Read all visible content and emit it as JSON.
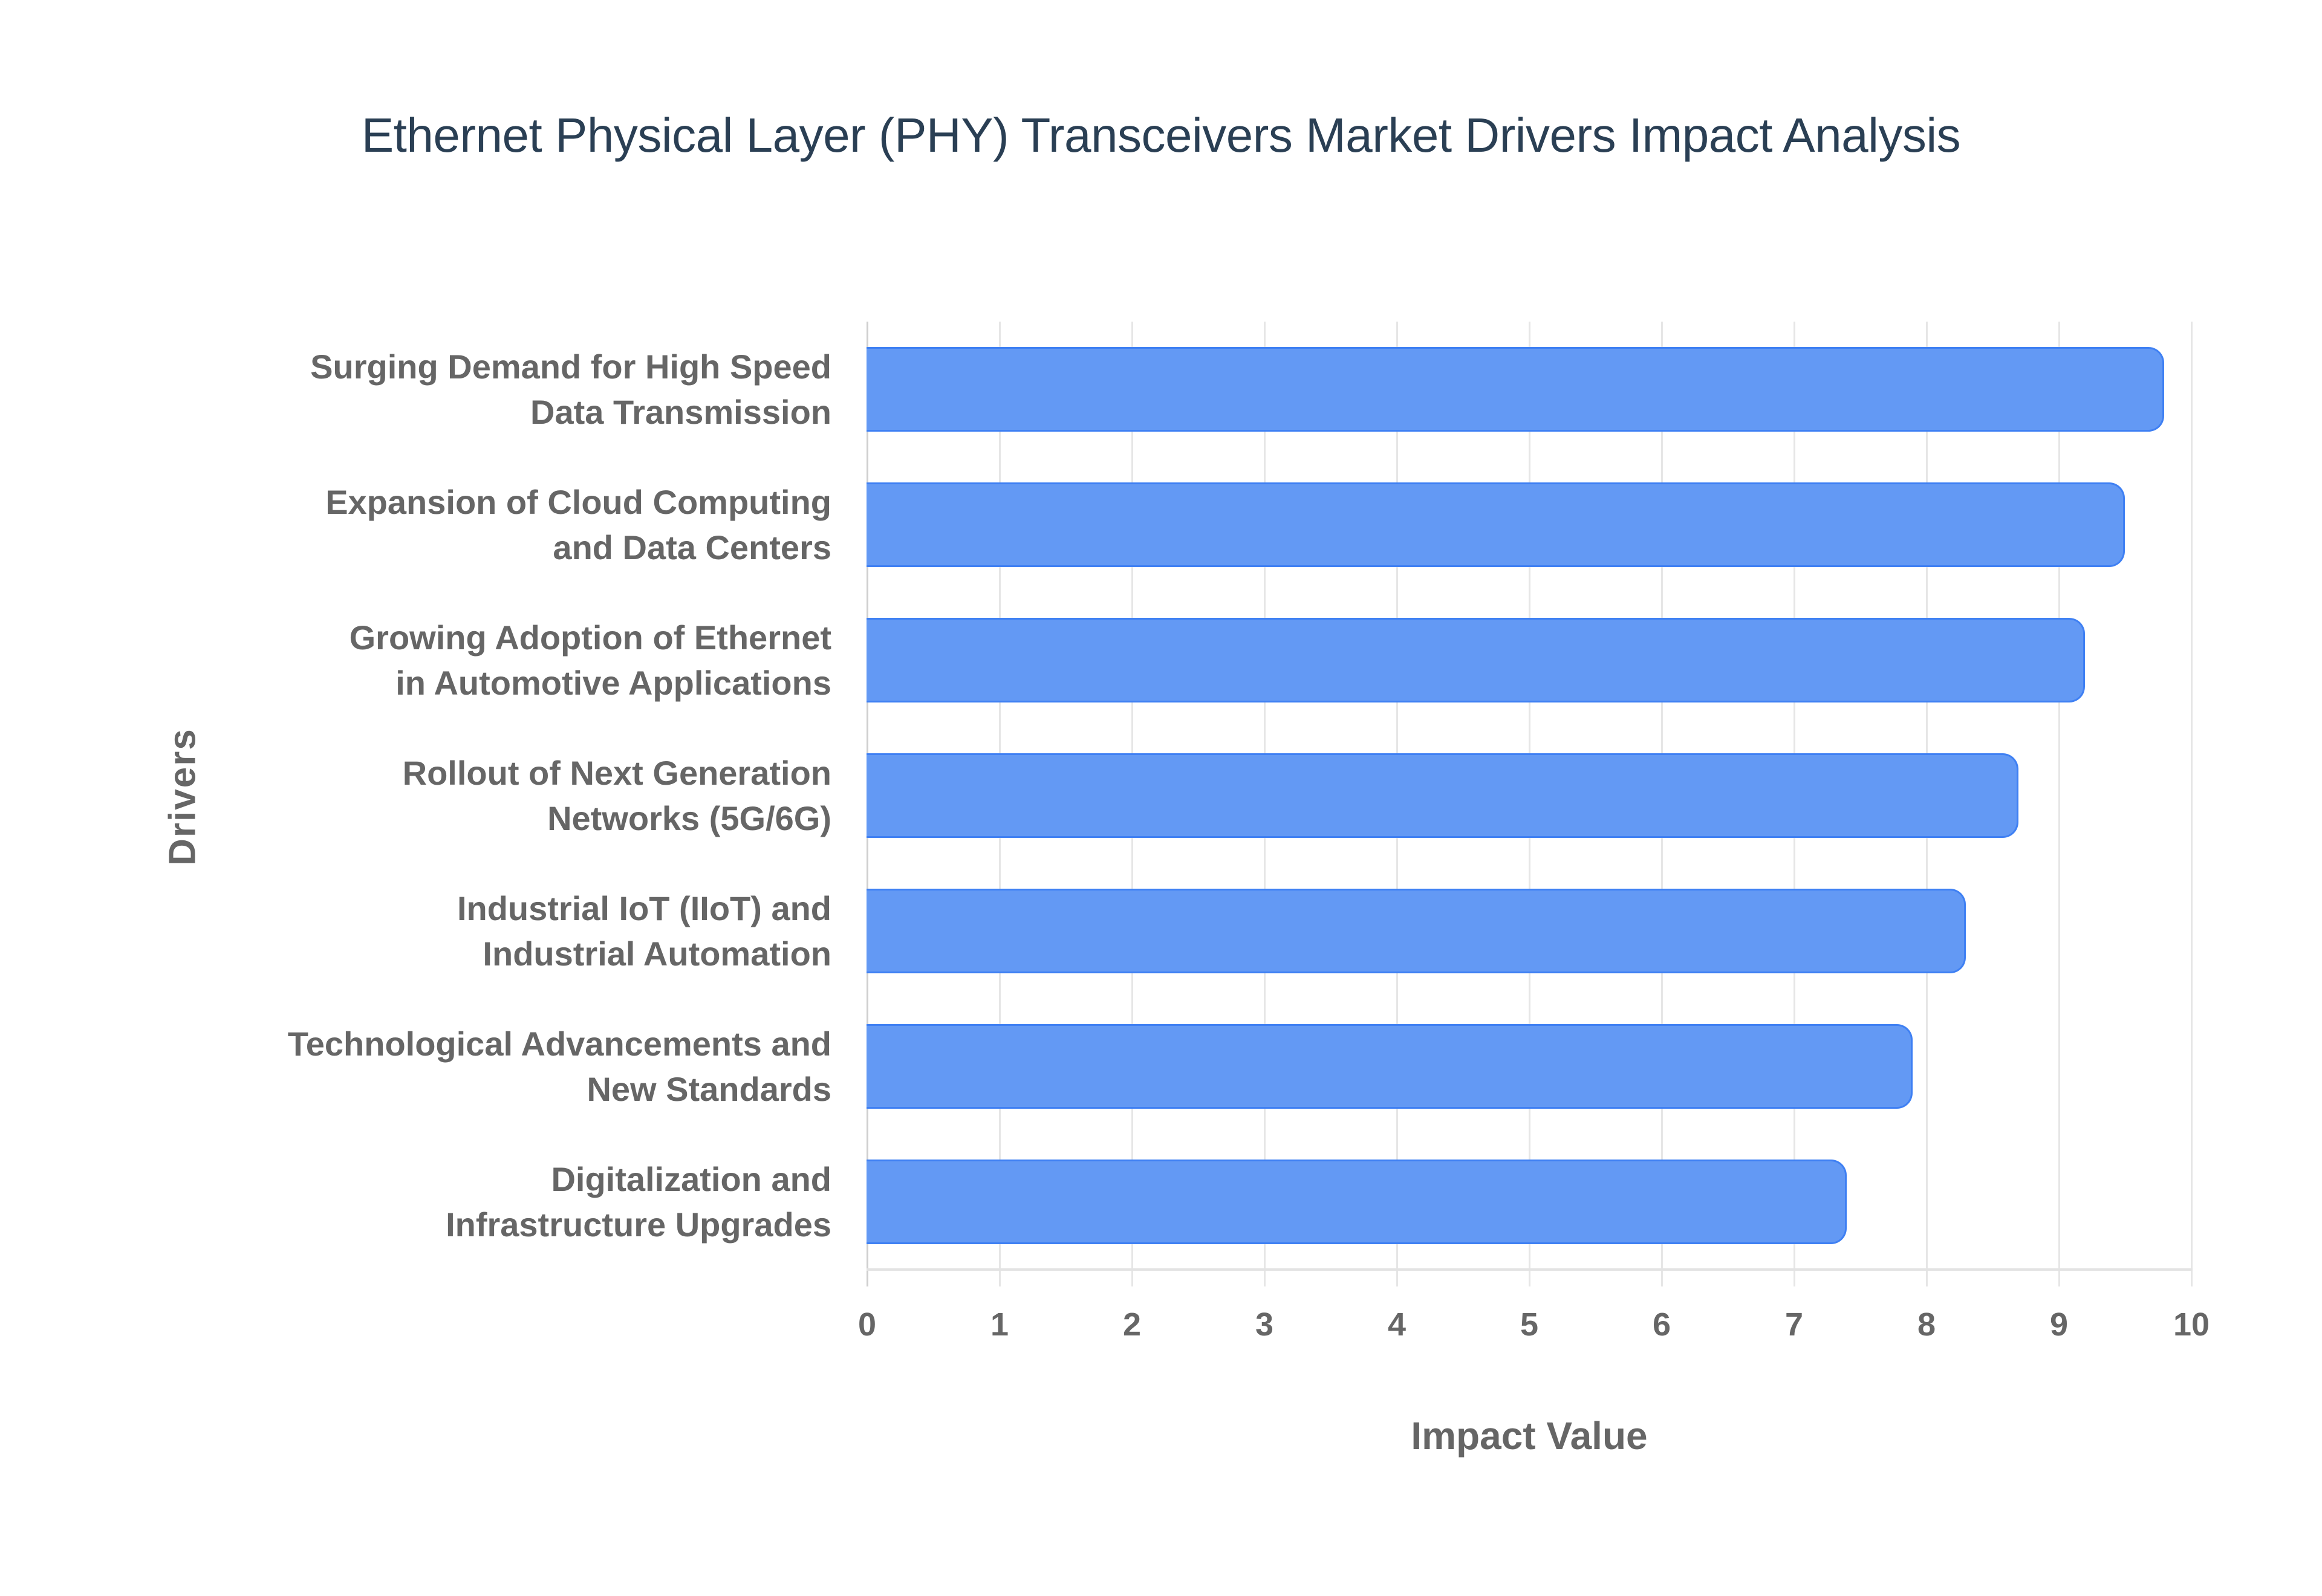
{
  "title": "Ethernet Physical Layer (PHY) Transceivers Market Drivers Impact Analysis",
  "colors": {
    "bar_fill": "#6399f4",
    "bar_border": "#3f80f3",
    "title": "#2a3f54",
    "axis_text": "#666666",
    "gridline": "#e6e6e6"
  },
  "axes": {
    "x_title": "Impact Value",
    "y_title": "Drivers",
    "x_ticks": [
      "0",
      "1",
      "2",
      "3",
      "4",
      "5",
      "6",
      "7",
      "8",
      "9",
      "10"
    ]
  },
  "bars": [
    {
      "label": "Surging Demand for High Speed\nData Transmission",
      "value": 9.8
    },
    {
      "label": "Expansion of Cloud Computing\nand Data Centers",
      "value": 9.5
    },
    {
      "label": "Growing Adoption of Ethernet\nin Automotive Applications",
      "value": 9.2
    },
    {
      "label": "Rollout of Next Generation\nNetworks (5G/6G)",
      "value": 8.7
    },
    {
      "label": "Industrial IoT (IIoT) and\nIndustrial Automation",
      "value": 8.3
    },
    {
      "label": "Technological Advancements and\nNew Standards",
      "value": 7.9
    },
    {
      "label": "Digitalization and\nInfrastructure Upgrades",
      "value": 7.4
    }
  ],
  "chart_data": {
    "type": "bar",
    "orientation": "horizontal",
    "title": "Ethernet Physical Layer (PHY) Transceivers Market Drivers Impact Analysis",
    "xlabel": "Impact Value",
    "ylabel": "Drivers",
    "categories": [
      "Surging Demand for High Speed Data Transmission",
      "Expansion of Cloud Computing and Data Centers",
      "Growing Adoption of Ethernet in Automotive Applications",
      "Rollout of Next Generation Networks (5G/6G)",
      "Industrial IoT (IIoT) and Industrial Automation",
      "Technological Advancements and New Standards",
      "Digitalization and Infrastructure Upgrades"
    ],
    "values": [
      9.8,
      9.5,
      9.2,
      8.7,
      8.3,
      7.9,
      7.4
    ],
    "xlim": [
      0,
      10
    ],
    "x_ticks": [
      0,
      1,
      2,
      3,
      4,
      5,
      6,
      7,
      8,
      9,
      10
    ],
    "grid": {
      "vertical": true,
      "horizontal": false
    },
    "legend": null
  }
}
